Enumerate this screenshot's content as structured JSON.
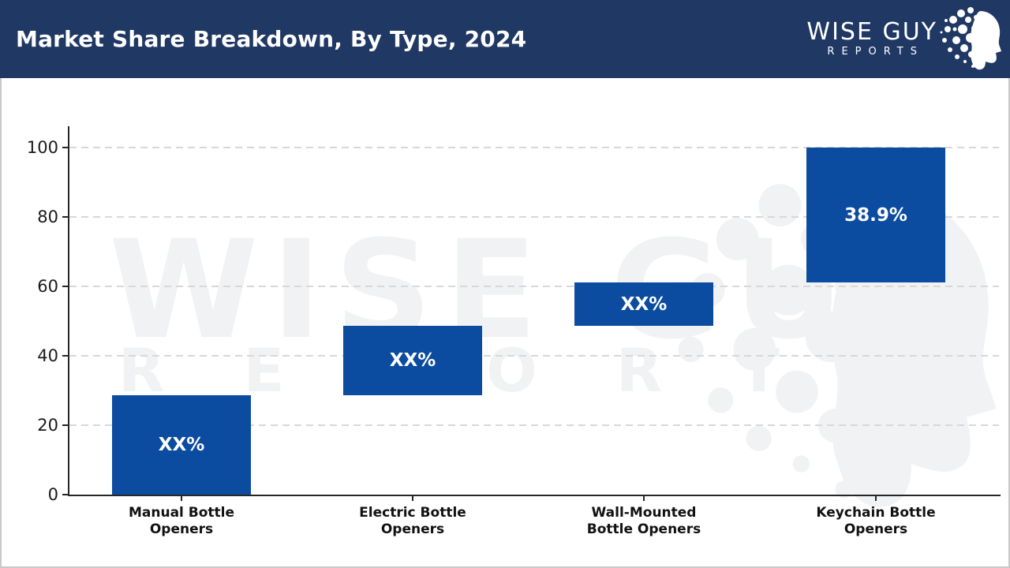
{
  "header": {
    "title": "Market Share Breakdown, By Type, 2024",
    "bg_color": "#203864",
    "logo": {
      "line1": "WISE GUY",
      "line2": "REPORTS"
    }
  },
  "watermark": {
    "line1": "WISE GUY",
    "line2": "REPORTS",
    "color": "#f1f2f4"
  },
  "chart_data": {
    "type": "bar",
    "subtype": "waterfall-segments",
    "title": "Market Share Breakdown, By Type, 2024",
    "bars": [
      {
        "category": "Manual Bottle Openers",
        "category_lines": [
          "Manual Bottle",
          "Openers"
        ],
        "start": 0,
        "end": 28.6,
        "label": "XX%"
      },
      {
        "category": "Electric Bottle Openers",
        "category_lines": [
          "Electric Bottle",
          "Openers"
        ],
        "start": 28.6,
        "end": 48.6,
        "label": "XX%"
      },
      {
        "category": "Wall-Mounted Bottle Openers",
        "category_lines": [
          "Wall-Mounted",
          "Bottle Openers"
        ],
        "start": 48.6,
        "end": 61.1,
        "label": "XX%"
      },
      {
        "category": "Keychain Bottle Openers",
        "category_lines": [
          "Keychain Bottle",
          "Openers"
        ],
        "start": 61.1,
        "end": 100,
        "label": "38.9%"
      }
    ],
    "y_ticks": [
      0,
      20,
      40,
      60,
      80,
      100
    ],
    "ylim": [
      0,
      100
    ],
    "xlabel": "",
    "ylabel": "",
    "legend": "none",
    "grid": "horizontal-dashed",
    "bar_color": "#0c4ca0",
    "grid_color": "#d8d8d8",
    "axis_color": "#262626"
  }
}
